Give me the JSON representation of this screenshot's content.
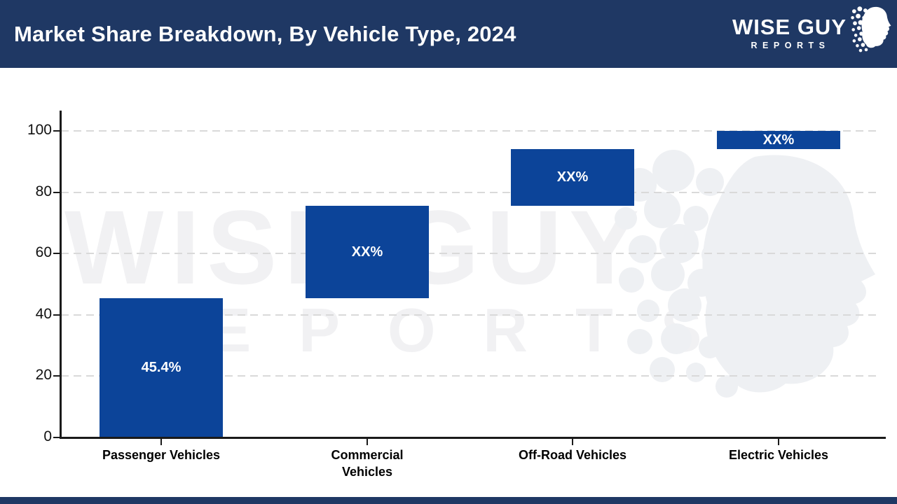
{
  "page": {
    "background": "#ffffff",
    "accent_navy": "#1f3864"
  },
  "header": {
    "title": "Market Share Breakdown, By Vehicle Type, 2024",
    "logo": {
      "wordmark": "WISE GUY",
      "subtext": "REPORTS"
    }
  },
  "watermark": {
    "wordmark": "WISE GUY",
    "subtext": "REPORTS"
  },
  "chart_data": {
    "type": "bar",
    "subtype": "waterfall-floating-bars",
    "title": "Market Share Breakdown, By Vehicle Type, 2024",
    "categories": [
      "Passenger Vehicles",
      "Commercial\nVehicles",
      "Off-Road Vehicles",
      "Electric Vehicles"
    ],
    "segments": [
      {
        "category": "Passenger Vehicles",
        "start": 0,
        "end": 45.4,
        "label": "45.4%"
      },
      {
        "category": "Commercial Vehicles",
        "start": 45.4,
        "end": 75.5,
        "label": "XX%"
      },
      {
        "category": "Off-Road Vehicles",
        "start": 75.5,
        "end": 94,
        "label": "XX%"
      },
      {
        "category": "Electric Vehicles",
        "start": 94,
        "end": 100,
        "label": "XX%"
      }
    ],
    "yticks": [
      0,
      20,
      40,
      60,
      80,
      100
    ],
    "ylim": [
      0,
      100
    ],
    "xlabel": "",
    "ylabel": "",
    "grid": "horizontal-dashed",
    "legend": "none",
    "bar_color": "#0c4499",
    "value_label_color": "#ffffff",
    "axis_color": "#1a1a1a",
    "grid_color": "#d9d9d9"
  }
}
